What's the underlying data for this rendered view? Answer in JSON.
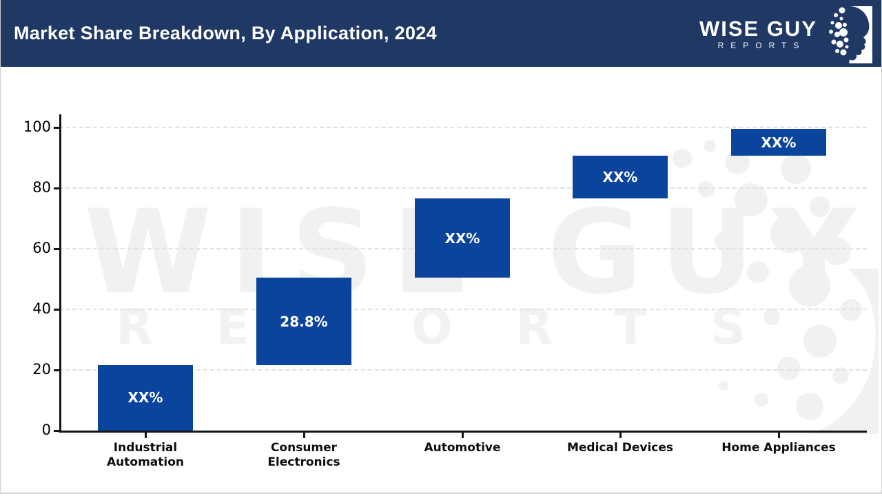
{
  "header": {
    "title": "Market Share Breakdown, By Application, 2024",
    "bg_color": "#1f3864",
    "logo": {
      "line1": "WISE GUY",
      "line2": "REPORTS"
    }
  },
  "watermark": {
    "line1": "WISE GUY",
    "line2": "REPORTS",
    "color": "#f1f1f1"
  },
  "chart_data": {
    "type": "bar",
    "subtype": "waterfall",
    "title": "Market Share Breakdown, By Application, 2024",
    "categories": [
      "Industrial Automation",
      "Consumer Electronics",
      "Automotive",
      "Medical Devices",
      "Home Appliances"
    ],
    "category_lines": [
      [
        "Industrial",
        "Automation"
      ],
      [
        "Consumer",
        "Electronics"
      ],
      [
        "Automotive"
      ],
      [
        "Medical Devices"
      ],
      [
        "Home Appliances"
      ]
    ],
    "bars": [
      {
        "category": "Industrial Automation",
        "start": 0,
        "end": 21.6,
        "value": 21.6,
        "label": "XX%"
      },
      {
        "category": "Consumer Electronics",
        "start": 21.6,
        "end": 50.4,
        "value": 28.8,
        "label": "28.8%"
      },
      {
        "category": "Automotive",
        "start": 50.4,
        "end": 76.6,
        "value": 26.2,
        "label": "XX%"
      },
      {
        "category": "Medical Devices",
        "start": 76.6,
        "end": 90.6,
        "value": 14.0,
        "label": "XX%"
      },
      {
        "category": "Home Appliances",
        "start": 90.6,
        "end": 99.6,
        "value": 9.0,
        "label": "XX%"
      }
    ],
    "xlabel": "",
    "ylabel": "",
    "ylim": [
      0,
      100
    ],
    "yticks": [
      0,
      20,
      40,
      60,
      80,
      100
    ],
    "bar_color": "#0a449c",
    "grid": "horizontal-dashed",
    "legend": "none"
  }
}
